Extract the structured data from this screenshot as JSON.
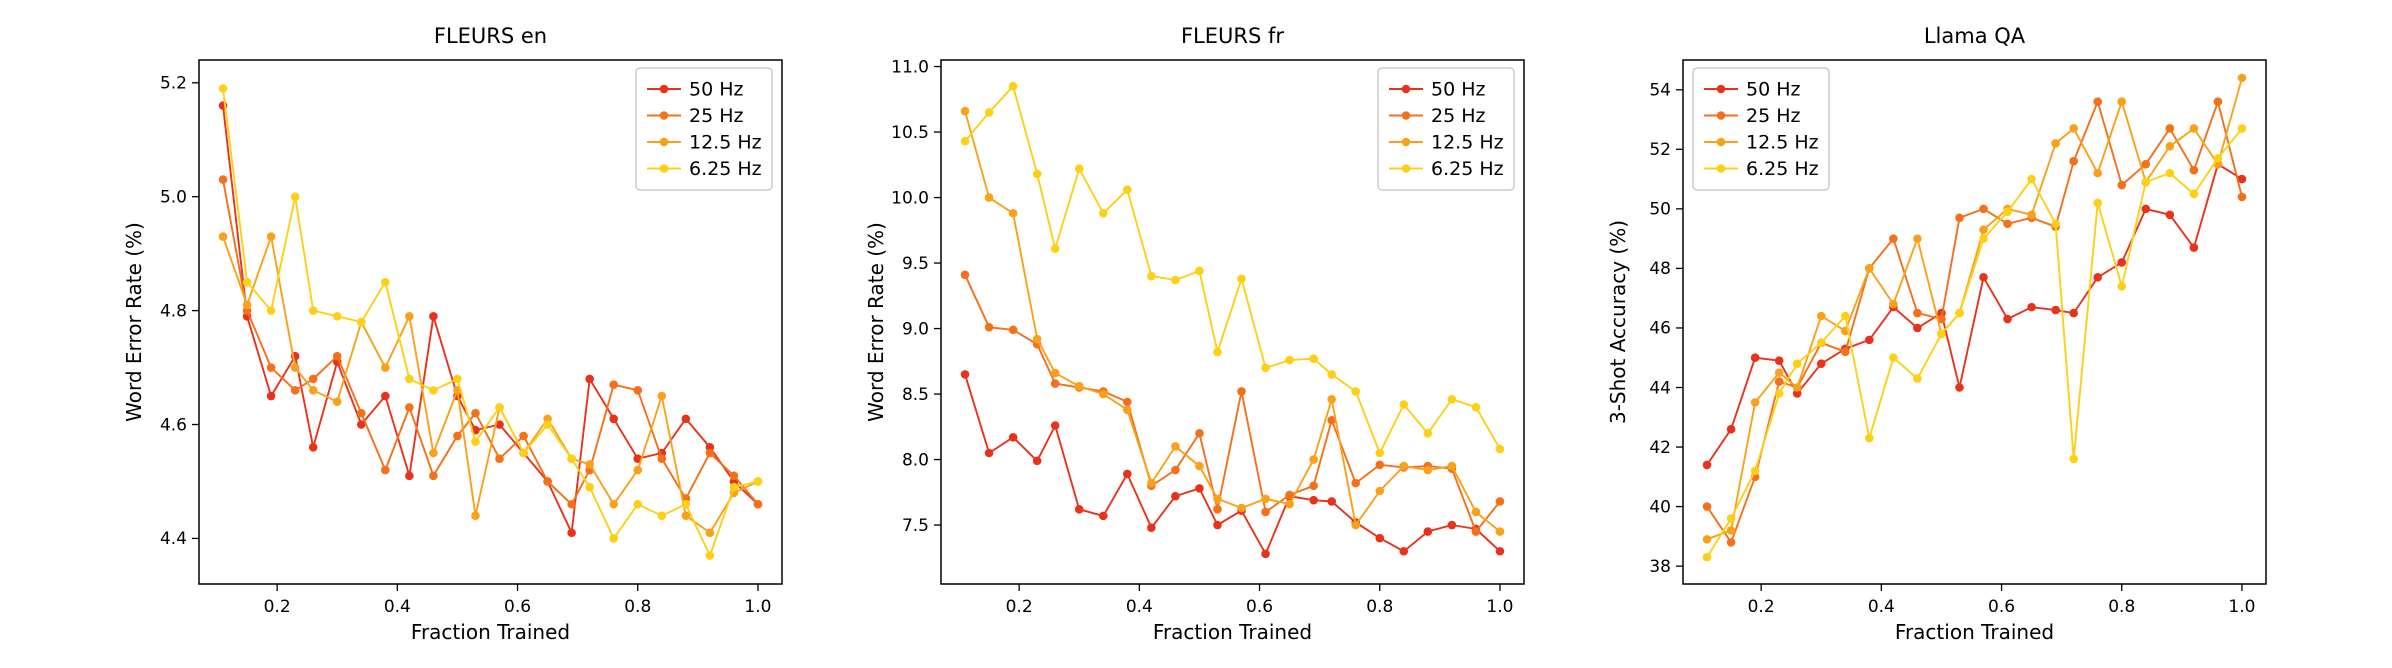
{
  "page": {
    "background": "#ffffff"
  },
  "chart_data": [
    {
      "type": "line",
      "id": "fleurs-en",
      "title": "FLEURS en",
      "xlabel": "Fraction Trained",
      "ylabel": "Word Error Rate (%)",
      "xlim": [
        0.07,
        1.04
      ],
      "ylim": [
        4.32,
        5.24
      ],
      "xticks": [
        0.2,
        0.4,
        0.6,
        0.8,
        1.0
      ],
      "yticks": [
        4.4,
        4.6,
        4.8,
        5.0,
        5.2
      ],
      "ytick_decimals": 1,
      "grid": false,
      "legend_position": "top-right",
      "x": [
        0.11,
        0.15,
        0.19,
        0.23,
        0.26,
        0.3,
        0.34,
        0.38,
        0.42,
        0.46,
        0.5,
        0.53,
        0.57,
        0.61,
        0.65,
        0.69,
        0.72,
        0.76,
        0.8,
        0.84,
        0.88,
        0.92,
        0.96,
        1.0
      ],
      "series": [
        {
          "name": "50 Hz",
          "color": "#e8331c",
          "values": [
            5.16,
            4.79,
            4.65,
            4.72,
            4.56,
            4.71,
            4.6,
            4.65,
            4.51,
            4.79,
            4.65,
            4.59,
            4.6,
            4.55,
            4.5,
            4.41,
            4.68,
            4.61,
            4.54,
            4.55,
            4.61,
            4.56,
            4.5,
            4.46
          ]
        },
        {
          "name": "25 Hz",
          "color": "#f4701b",
          "values": [
            5.03,
            4.8,
            4.7,
            4.66,
            4.68,
            4.72,
            4.62,
            4.52,
            4.63,
            4.51,
            4.58,
            4.62,
            4.54,
            4.58,
            4.5,
            4.46,
            4.52,
            4.67,
            4.66,
            4.54,
            4.47,
            4.55,
            4.51,
            4.46
          ]
        },
        {
          "name": "12.5 Hz",
          "color": "#f9a11a",
          "values": [
            4.93,
            4.81,
            4.93,
            4.7,
            4.66,
            4.64,
            4.78,
            4.7,
            4.79,
            4.55,
            4.66,
            4.44,
            4.63,
            4.55,
            4.61,
            4.54,
            4.53,
            4.46,
            4.52,
            4.65,
            4.44,
            4.41,
            4.48,
            4.5
          ]
        },
        {
          "name": "6.25 Hz",
          "color": "#fdd017",
          "values": [
            5.19,
            4.85,
            4.8,
            5.0,
            4.8,
            4.79,
            4.78,
            4.85,
            4.68,
            4.66,
            4.68,
            4.57,
            4.63,
            4.55,
            4.6,
            4.54,
            4.49,
            4.4,
            4.46,
            4.44,
            4.46,
            4.37,
            4.49,
            4.5
          ]
        }
      ]
    },
    {
      "type": "line",
      "id": "fleurs-fr",
      "title": "FLEURS fr",
      "xlabel": "Fraction Trained",
      "ylabel": "Word Error Rate (%)",
      "xlim": [
        0.07,
        1.04
      ],
      "ylim": [
        7.05,
        11.05
      ],
      "xticks": [
        0.2,
        0.4,
        0.6,
        0.8,
        1.0
      ],
      "yticks": [
        7.5,
        8.0,
        8.5,
        9.0,
        9.5,
        10.0,
        10.5,
        11.0
      ],
      "ytick_decimals": 1,
      "grid": false,
      "legend_position": "top-right",
      "x": [
        0.11,
        0.15,
        0.19,
        0.23,
        0.26,
        0.3,
        0.34,
        0.38,
        0.42,
        0.46,
        0.5,
        0.53,
        0.57,
        0.61,
        0.65,
        0.69,
        0.72,
        0.76,
        0.8,
        0.84,
        0.88,
        0.92,
        0.96,
        1.0
      ],
      "series": [
        {
          "name": "50 Hz",
          "color": "#e8331c",
          "values": [
            8.65,
            8.05,
            8.17,
            7.99,
            8.26,
            7.62,
            7.57,
            7.89,
            7.48,
            7.72,
            7.78,
            7.5,
            7.61,
            7.28,
            7.72,
            7.69,
            7.68,
            7.52,
            7.4,
            7.3,
            7.45,
            7.5,
            7.47,
            7.3
          ]
        },
        {
          "name": "25 Hz",
          "color": "#f4701b",
          "values": [
            9.41,
            9.01,
            8.99,
            8.88,
            8.58,
            8.55,
            8.52,
            8.44,
            7.8,
            7.92,
            8.2,
            7.62,
            8.52,
            7.6,
            7.73,
            7.8,
            8.3,
            7.82,
            7.96,
            7.94,
            7.95,
            7.93,
            7.45,
            7.68
          ]
        },
        {
          "name": "12.5 Hz",
          "color": "#f9a11a",
          "values": [
            10.66,
            10.0,
            9.88,
            8.92,
            8.66,
            8.56,
            8.5,
            8.38,
            7.82,
            8.1,
            7.95,
            7.7,
            7.63,
            7.7,
            7.66,
            8.0,
            8.46,
            7.5,
            7.76,
            7.95,
            7.92,
            7.95,
            7.6,
            7.45
          ]
        },
        {
          "name": "6.25 Hz",
          "color": "#fdd017",
          "values": [
            10.43,
            10.65,
            10.85,
            10.18,
            9.61,
            10.22,
            9.88,
            10.06,
            9.4,
            9.37,
            9.44,
            8.82,
            9.38,
            8.7,
            8.76,
            8.77,
            8.65,
            8.52,
            8.05,
            8.42,
            8.2,
            8.46,
            8.4,
            8.08
          ]
        }
      ]
    },
    {
      "type": "line",
      "id": "llama-qa",
      "title": "Llama QA",
      "xlabel": "Fraction Trained",
      "ylabel": "3-Shot Accuracy (%)",
      "xlim": [
        0.07,
        1.04
      ],
      "ylim": [
        37.4,
        55.0
      ],
      "xticks": [
        0.2,
        0.4,
        0.6,
        0.8,
        1.0
      ],
      "yticks": [
        38,
        40,
        42,
        44,
        46,
        48,
        50,
        52,
        54
      ],
      "ytick_decimals": 0,
      "grid": false,
      "legend_position": "top-left",
      "x": [
        0.11,
        0.15,
        0.19,
        0.23,
        0.26,
        0.3,
        0.34,
        0.38,
        0.42,
        0.46,
        0.5,
        0.53,
        0.57,
        0.61,
        0.65,
        0.69,
        0.72,
        0.76,
        0.8,
        0.84,
        0.88,
        0.92,
        0.96,
        1.0
      ],
      "series": [
        {
          "name": "50 Hz",
          "color": "#e8331c",
          "values": [
            41.4,
            42.6,
            45.0,
            44.9,
            43.8,
            44.8,
            45.3,
            45.6,
            46.7,
            46.0,
            46.5,
            44.0,
            47.7,
            46.3,
            46.7,
            46.6,
            46.5,
            47.7,
            48.2,
            50.0,
            49.8,
            48.7,
            51.5,
            51.0
          ]
        },
        {
          "name": "25 Hz",
          "color": "#f4701b",
          "values": [
            40.0,
            38.8,
            41.0,
            44.2,
            44.0,
            45.5,
            45.2,
            48.0,
            49.0,
            46.5,
            46.3,
            49.7,
            50.0,
            49.5,
            49.7,
            49.4,
            51.6,
            53.6,
            50.8,
            51.5,
            52.7,
            51.3,
            53.6,
            50.4
          ]
        },
        {
          "name": "12.5 Hz",
          "color": "#f9a11a",
          "values": [
            38.9,
            39.2,
            43.5,
            44.5,
            44.0,
            46.4,
            45.9,
            48.0,
            46.8,
            49.0,
            45.8,
            46.5,
            49.3,
            50.0,
            49.8,
            52.2,
            52.7,
            51.2,
            53.6,
            50.9,
            52.1,
            52.7,
            51.5,
            54.4
          ]
        },
        {
          "name": "6.25 Hz",
          "color": "#fdd017",
          "values": [
            38.3,
            39.6,
            41.2,
            43.8,
            44.8,
            45.5,
            46.4,
            42.3,
            45.0,
            44.3,
            45.8,
            46.5,
            49.0,
            49.9,
            51.0,
            49.5,
            41.6,
            50.2,
            47.4,
            50.9,
            51.2,
            50.5,
            51.7,
            52.7
          ]
        }
      ]
    }
  ]
}
